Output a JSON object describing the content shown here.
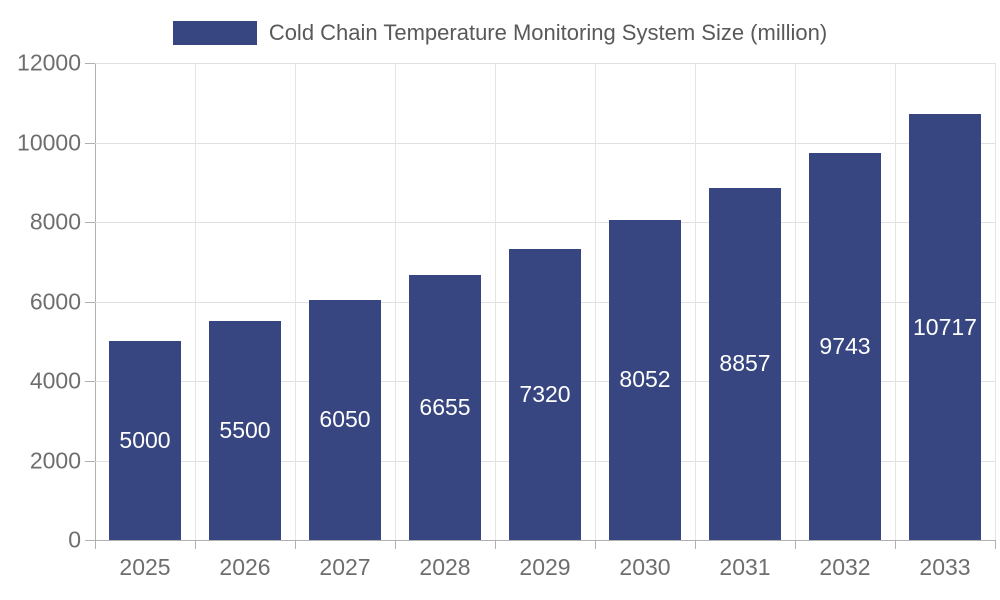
{
  "legend": {
    "label": "Cold Chain Temperature Monitoring System Size (million)"
  },
  "chart_data": {
    "type": "bar",
    "title": "Cold Chain Temperature Monitoring System Size (million)",
    "categories": [
      "2025",
      "2026",
      "2027",
      "2028",
      "2029",
      "2030",
      "2031",
      "2032",
      "2033"
    ],
    "values": [
      5000,
      5500,
      6050,
      6655,
      7320,
      8052,
      8857,
      9743,
      10717
    ],
    "series_name": "Cold Chain Temperature Monitoring System Size (million)",
    "xlabel": "",
    "ylabel": "",
    "ylim": [
      0,
      12000
    ],
    "yticks": [
      0,
      2000,
      4000,
      6000,
      8000,
      10000,
      12000
    ],
    "grid": true,
    "legend_position": "top",
    "bar_label_position": "inside-center",
    "colors": {
      "bar": "#374680",
      "bar_label": "#ffffff",
      "axis_text": "#6e6e6e",
      "legend_text": "#595959",
      "gridline": "#e0e0e0",
      "axis_line": "#b0b0b0"
    }
  }
}
